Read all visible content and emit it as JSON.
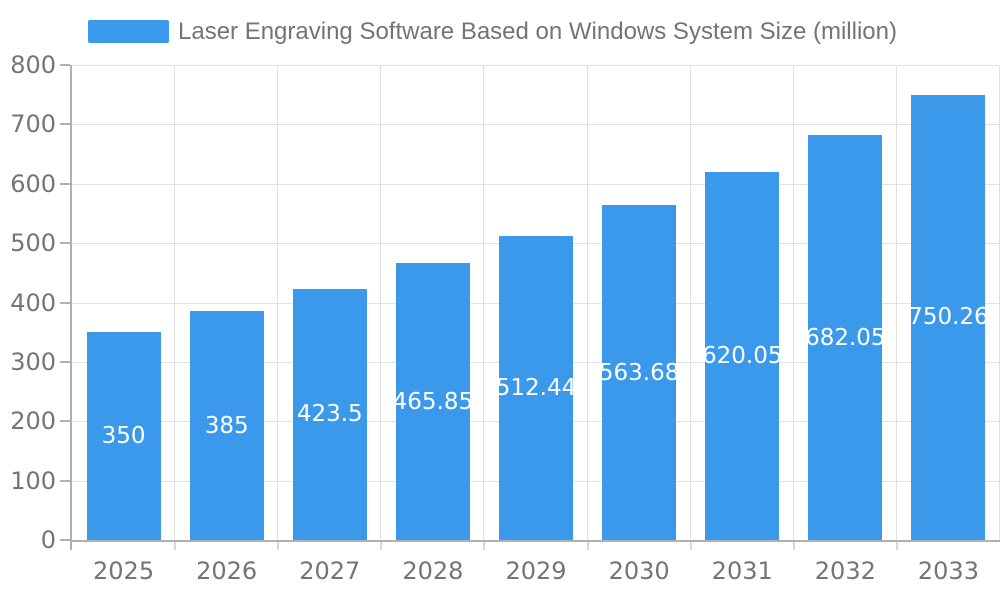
{
  "chart_data": {
    "type": "bar",
    "title": "Laser Engraving Software Based on Windows System Size (million)",
    "categories": [
      "2025",
      "2026",
      "2027",
      "2028",
      "2029",
      "2030",
      "2031",
      "2032",
      "2033"
    ],
    "values": [
      350,
      385,
      423.5,
      465.85,
      512.44,
      563.68,
      620.05,
      682.05,
      750.26
    ],
    "value_labels": [
      "350",
      "385",
      "423.5",
      "465.85",
      "512.44",
      "563.68",
      "620.05",
      "682.05",
      "750.26"
    ],
    "xlabel": "",
    "ylabel": "",
    "ylim": [
      0,
      800
    ],
    "ytick_step": 100,
    "yticks": [
      0,
      100,
      200,
      300,
      400,
      500,
      600,
      700,
      800
    ],
    "grid": "horizontal and vertical light gridlines",
    "legend_position": "top-left",
    "colors": {
      "bar": "#3b99ec",
      "bar_value_text": "#ffffff",
      "axis_text": "#757575",
      "title_text": "#747474",
      "grid_line": "#e2e2e2",
      "axis_line": "#b0b0b0",
      "minor_tick": "#d8d8d8",
      "background": "#ffffff"
    }
  }
}
